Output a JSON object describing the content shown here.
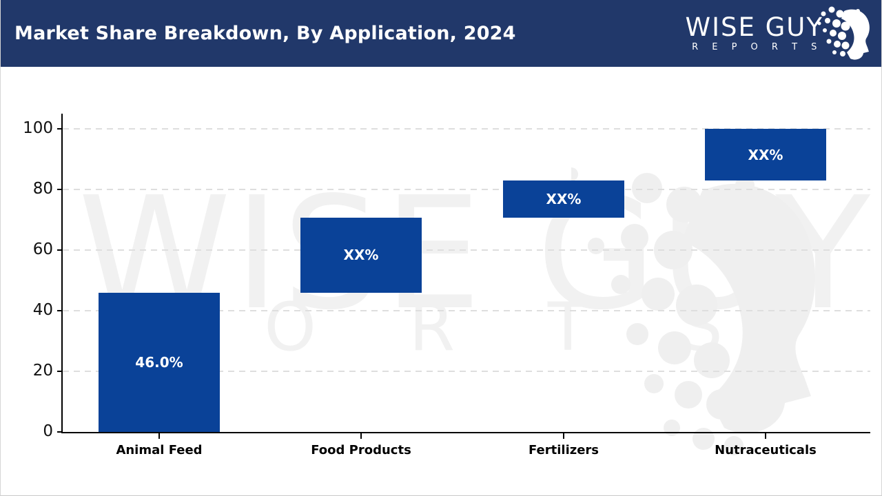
{
  "header": {
    "title": "Market Share Breakdown, By Application, 2024",
    "logo": {
      "line1": "WISE GUY",
      "line2": "R E P O R T S"
    }
  },
  "watermark": {
    "line1": "WISE GUY",
    "line2": "P O R T S"
  },
  "colors": {
    "header_bg": "#21386a",
    "bar": "#0a4298",
    "grid": "#dedede",
    "axis": "#000000",
    "bar_label_text": "#ffffff",
    "watermark": "#f1f1f1"
  },
  "chart_data": {
    "type": "bar",
    "subtype": "waterfall",
    "title": "Market Share Breakdown, By Application, 2024",
    "categories": [
      "Animal Feed",
      "Food Products",
      "Fertilizers",
      "Nutraceuticals"
    ],
    "bars": [
      {
        "category": "Animal Feed",
        "start": 0,
        "end": 46.0,
        "label": "46.0%"
      },
      {
        "category": "Food Products",
        "start": 46.0,
        "end": 70.6,
        "label": "XX%"
      },
      {
        "category": "Fertilizers",
        "start": 70.6,
        "end": 82.9,
        "label": "XX%"
      },
      {
        "category": "Nutraceuticals",
        "start": 82.9,
        "end": 100.0,
        "label": "XX%"
      }
    ],
    "bar_labels": [
      "46.0%",
      "XX%",
      "XX%",
      "XX%"
    ],
    "yticks": [
      0,
      20,
      40,
      60,
      80,
      100
    ],
    "ylim": [
      0,
      105
    ],
    "xlabel": "",
    "ylabel": "",
    "grid": "horizontal dashed",
    "legend": "none"
  }
}
